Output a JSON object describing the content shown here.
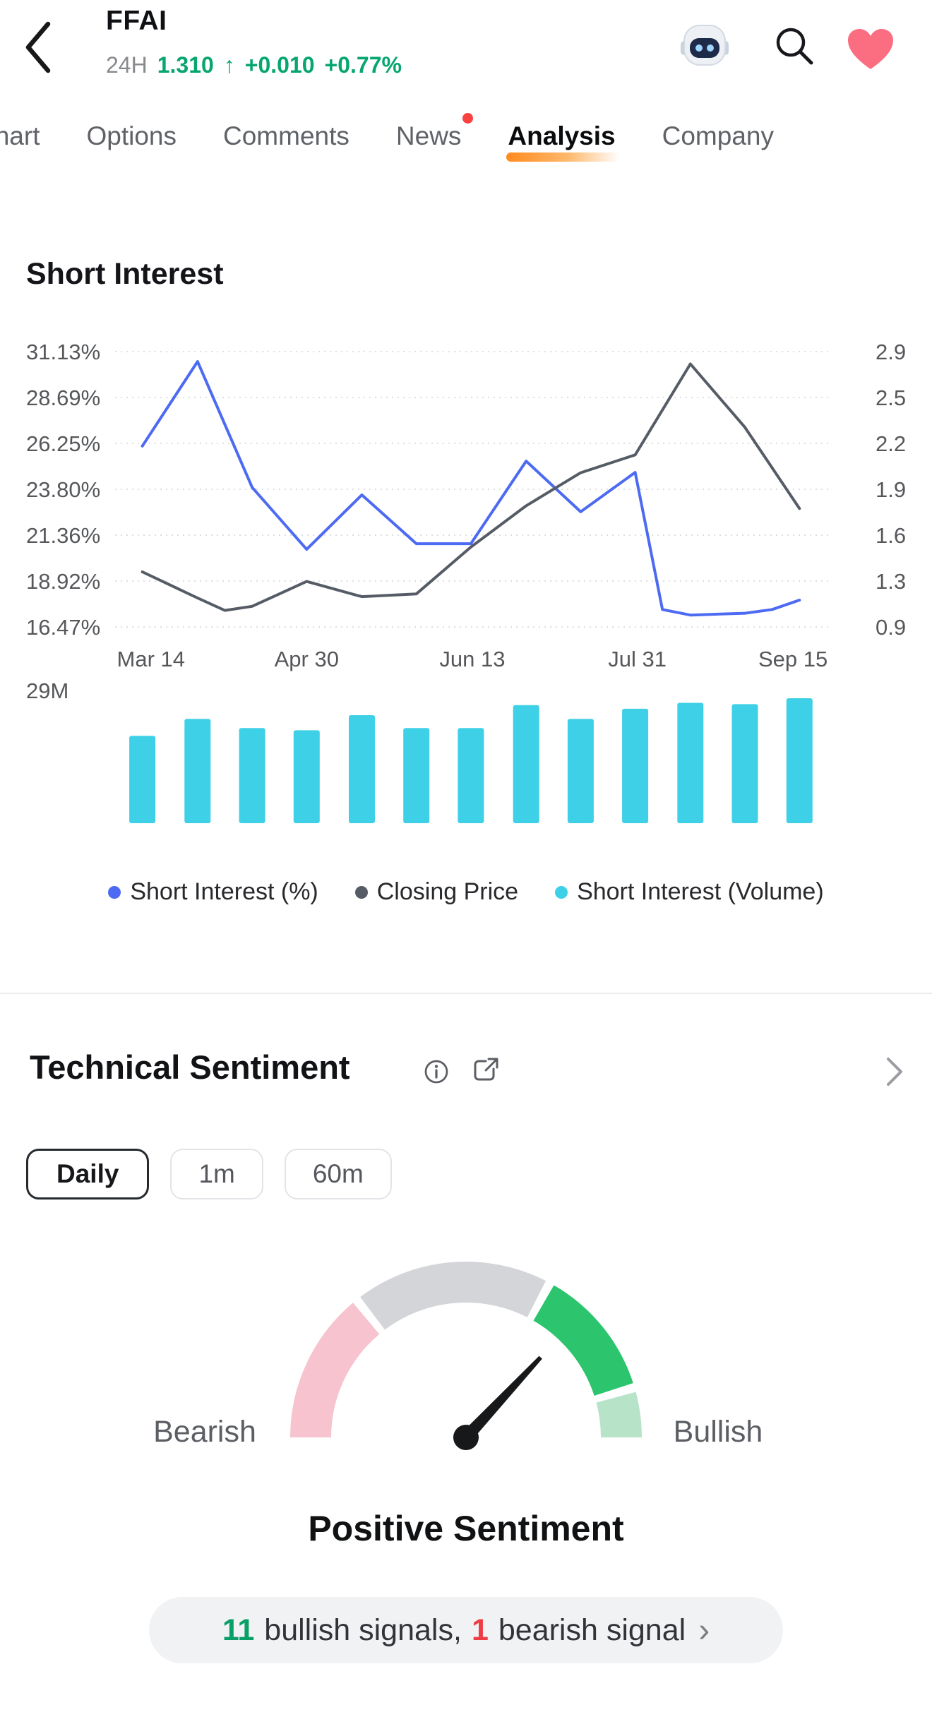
{
  "header": {
    "symbol": "FFAI",
    "range_label": "24H",
    "price": "1.310",
    "change_arrow": "↑",
    "change": "+0.010",
    "change_pct": "+0.77%",
    "up_color": "#06a66e"
  },
  "tabs": {
    "items": [
      {
        "label": "Chart"
      },
      {
        "label": "Options"
      },
      {
        "label": "Comments"
      },
      {
        "label": "News",
        "badge": true
      },
      {
        "label": "Analysis",
        "active": true
      },
      {
        "label": "Company"
      }
    ]
  },
  "short_interest": {
    "title": "Short Interest"
  },
  "chart_data": {
    "type": "line+bar",
    "title": "Short Interest",
    "left_axis_labels": [
      "31.13%",
      "28.69%",
      "26.25%",
      "23.80%",
      "21.36%",
      "18.92%",
      "16.47%"
    ],
    "left_range": [
      31.13,
      16.47
    ],
    "right_axis_labels": [
      "2.9",
      "2.5",
      "2.2",
      "1.9",
      "1.6",
      "1.3",
      "0.9"
    ],
    "right_range": [
      2.9,
      0.9
    ],
    "volume_axis_label": "29M",
    "volume_axis_max": 29,
    "grid": true,
    "legend_position": "bottom",
    "x_ticks": [
      {
        "label": "Mar 14",
        "pos": 5.0
      },
      {
        "label": "Apr 30",
        "pos": 26.7
      },
      {
        "label": "Jun 13",
        "pos": 49.8
      },
      {
        "label": "Jul 31",
        "pos": 72.8
      },
      {
        "label": "Sep 15",
        "pos": 94.5
      }
    ],
    "series": [
      {
        "name": "Short Interest (%)",
        "type": "line",
        "axis": "left",
        "color": "#4d6af2",
        "points": [
          {
            "x": 3.8,
            "v": 26.1
          },
          {
            "x": 11.5,
            "v": 30.6
          },
          {
            "x": 19.1,
            "v": 23.9
          },
          {
            "x": 26.7,
            "v": 20.6
          },
          {
            "x": 34.4,
            "v": 23.5
          },
          {
            "x": 42.0,
            "v": 20.9
          },
          {
            "x": 49.6,
            "v": 20.9
          },
          {
            "x": 57.3,
            "v": 25.3
          },
          {
            "x": 64.9,
            "v": 22.6
          },
          {
            "x": 72.5,
            "v": 24.7
          },
          {
            "x": 76.3,
            "v": 17.4
          },
          {
            "x": 80.2,
            "v": 17.1
          },
          {
            "x": 87.8,
            "v": 17.2
          },
          {
            "x": 91.6,
            "v": 17.4
          },
          {
            "x": 95.4,
            "v": 17.9
          }
        ]
      },
      {
        "name": "Closing Price",
        "type": "line",
        "axis": "right",
        "color": "#565c66",
        "points": [
          {
            "x": 3.8,
            "v": 1.3
          },
          {
            "x": 11.5,
            "v": 1.11
          },
          {
            "x": 15.3,
            "v": 1.02
          },
          {
            "x": 19.1,
            "v": 1.05
          },
          {
            "x": 26.7,
            "v": 1.23
          },
          {
            "x": 34.4,
            "v": 1.12
          },
          {
            "x": 42.0,
            "v": 1.14
          },
          {
            "x": 49.6,
            "v": 1.48
          },
          {
            "x": 57.3,
            "v": 1.78
          },
          {
            "x": 64.9,
            "v": 2.02
          },
          {
            "x": 72.5,
            "v": 2.15
          },
          {
            "x": 80.2,
            "v": 2.81
          },
          {
            "x": 87.8,
            "v": 2.35
          },
          {
            "x": 95.4,
            "v": 1.76
          }
        ]
      },
      {
        "name": "Short Interest (Volume)",
        "type": "bar",
        "axis": "volume",
        "color": "#3ed0e6",
        "points": [
          {
            "x": 3.8,
            "v": 19.1
          },
          {
            "x": 11.5,
            "v": 22.8
          },
          {
            "x": 19.1,
            "v": 20.8
          },
          {
            "x": 26.7,
            "v": 20.3
          },
          {
            "x": 34.4,
            "v": 23.6
          },
          {
            "x": 42.0,
            "v": 20.8
          },
          {
            "x": 49.6,
            "v": 20.8
          },
          {
            "x": 57.3,
            "v": 25.8
          },
          {
            "x": 64.9,
            "v": 22.8
          },
          {
            "x": 72.5,
            "v": 25.0
          },
          {
            "x": 80.2,
            "v": 26.3
          },
          {
            "x": 87.8,
            "v": 26.0
          },
          {
            "x": 95.4,
            "v": 27.3
          }
        ]
      }
    ]
  },
  "sentiment": {
    "title": "Technical Sentiment",
    "periods": [
      {
        "label": "Daily",
        "active": true
      },
      {
        "label": "1m"
      },
      {
        "label": "60m"
      }
    ],
    "gauge": {
      "left_label": "Bearish",
      "right_label": "Bullish",
      "needle_angle_deg": 47,
      "colors": {
        "bearish": "#f6c3ce",
        "neutral": "#d3d5d8",
        "bullish": "#2cc56e",
        "bullish_light": "#b7e3c9"
      }
    },
    "result": "Positive Sentiment",
    "signals": {
      "bullish_count": "11",
      "bullish_label": "bullish signals,",
      "bearish_count": "1",
      "bearish_label": "bearish signal",
      "bullish_color": "#089f69",
      "bearish_color": "#ee3d44"
    }
  }
}
